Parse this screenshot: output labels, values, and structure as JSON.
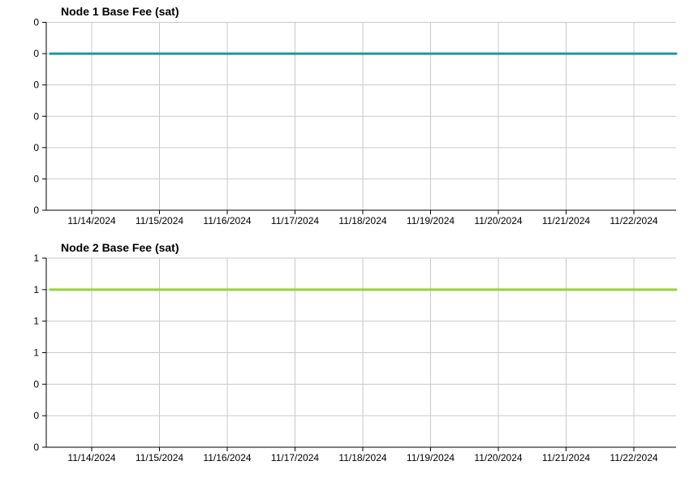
{
  "page": {
    "background": "#ffffff"
  },
  "colors": {
    "grid": "#c9c9c9",
    "axis": "#000000",
    "tick_text": "#000000",
    "title_text": "#000000"
  },
  "chart_data": [
    {
      "type": "line",
      "title": "Node 1 Base Fee (sat)",
      "series": [
        {
          "name": "Node 1 Base Fee",
          "value": 0.001,
          "color": "#1899a2"
        }
      ],
      "x_tick_labels": [
        "11/14/2024",
        "11/15/2024",
        "11/16/2024",
        "11/17/2024",
        "11/18/2024",
        "11/19/2024",
        "11/20/2024",
        "11/21/2024",
        "11/22/2024"
      ],
      "y_tick_labels": [
        "0",
        "0",
        "0",
        "0",
        "0",
        "0",
        "0"
      ],
      "y_tick_values": [
        0.0012,
        0.001,
        0.0008,
        0.0006,
        0.0004,
        0.0002,
        0
      ],
      "ylim": [
        0,
        0.0012
      ],
      "xlabel": "",
      "ylabel": "",
      "grid": true,
      "legend": false
    },
    {
      "type": "line",
      "title": "Node 2 Base Fee (sat)",
      "series": [
        {
          "name": "Node 2 Base Fee",
          "value": 1,
          "color": "#98d03e"
        }
      ],
      "x_tick_labels": [
        "11/14/2024",
        "11/15/2024",
        "11/16/2024",
        "11/17/2024",
        "11/18/2024",
        "11/19/2024",
        "11/20/2024",
        "11/21/2024",
        "11/22/2024"
      ],
      "y_tick_labels": [
        "1",
        "1",
        "1",
        "1",
        "0",
        "0",
        "0"
      ],
      "y_tick_values": [
        1.2,
        1.0,
        0.8,
        0.6,
        0.4,
        0.2,
        0
      ],
      "ylim": [
        0,
        1.2
      ],
      "xlabel": "",
      "ylabel": "",
      "grid": true,
      "legend": false
    }
  ]
}
